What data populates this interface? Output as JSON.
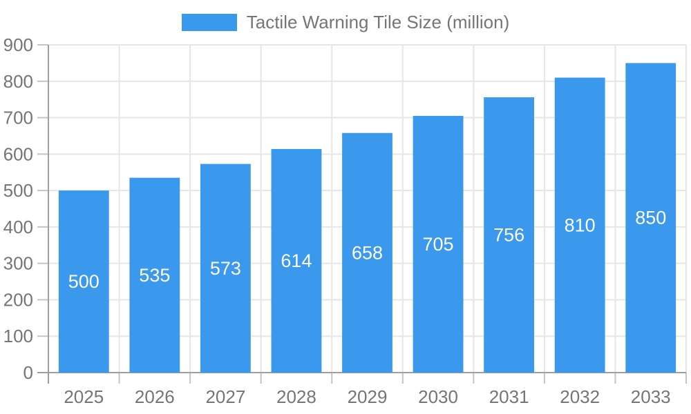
{
  "chart_data": {
    "type": "bar",
    "categories": [
      "2025",
      "2026",
      "2027",
      "2028",
      "2029",
      "2030",
      "2031",
      "2032",
      "2033"
    ],
    "series": [
      {
        "name": "Tactile Warning Tile Size (million)",
        "values": [
          500,
          535,
          573,
          614,
          658,
          705,
          756,
          810,
          850
        ]
      }
    ],
    "title": "",
    "xlabel": "",
    "ylabel": "",
    "ylim": [
      0,
      900
    ],
    "yticks": [
      0,
      100,
      200,
      300,
      400,
      500,
      600,
      700,
      800,
      900
    ],
    "legend_position": "top",
    "grid": true,
    "bar_value_labels_visible": true,
    "colors": {
      "bar": "#3b99ed",
      "bar_label": "#ffffff",
      "axis": "#9e9e9e",
      "gridline": "#e6e6e6",
      "tick": "#c4c4c4",
      "text": "#757575"
    }
  }
}
